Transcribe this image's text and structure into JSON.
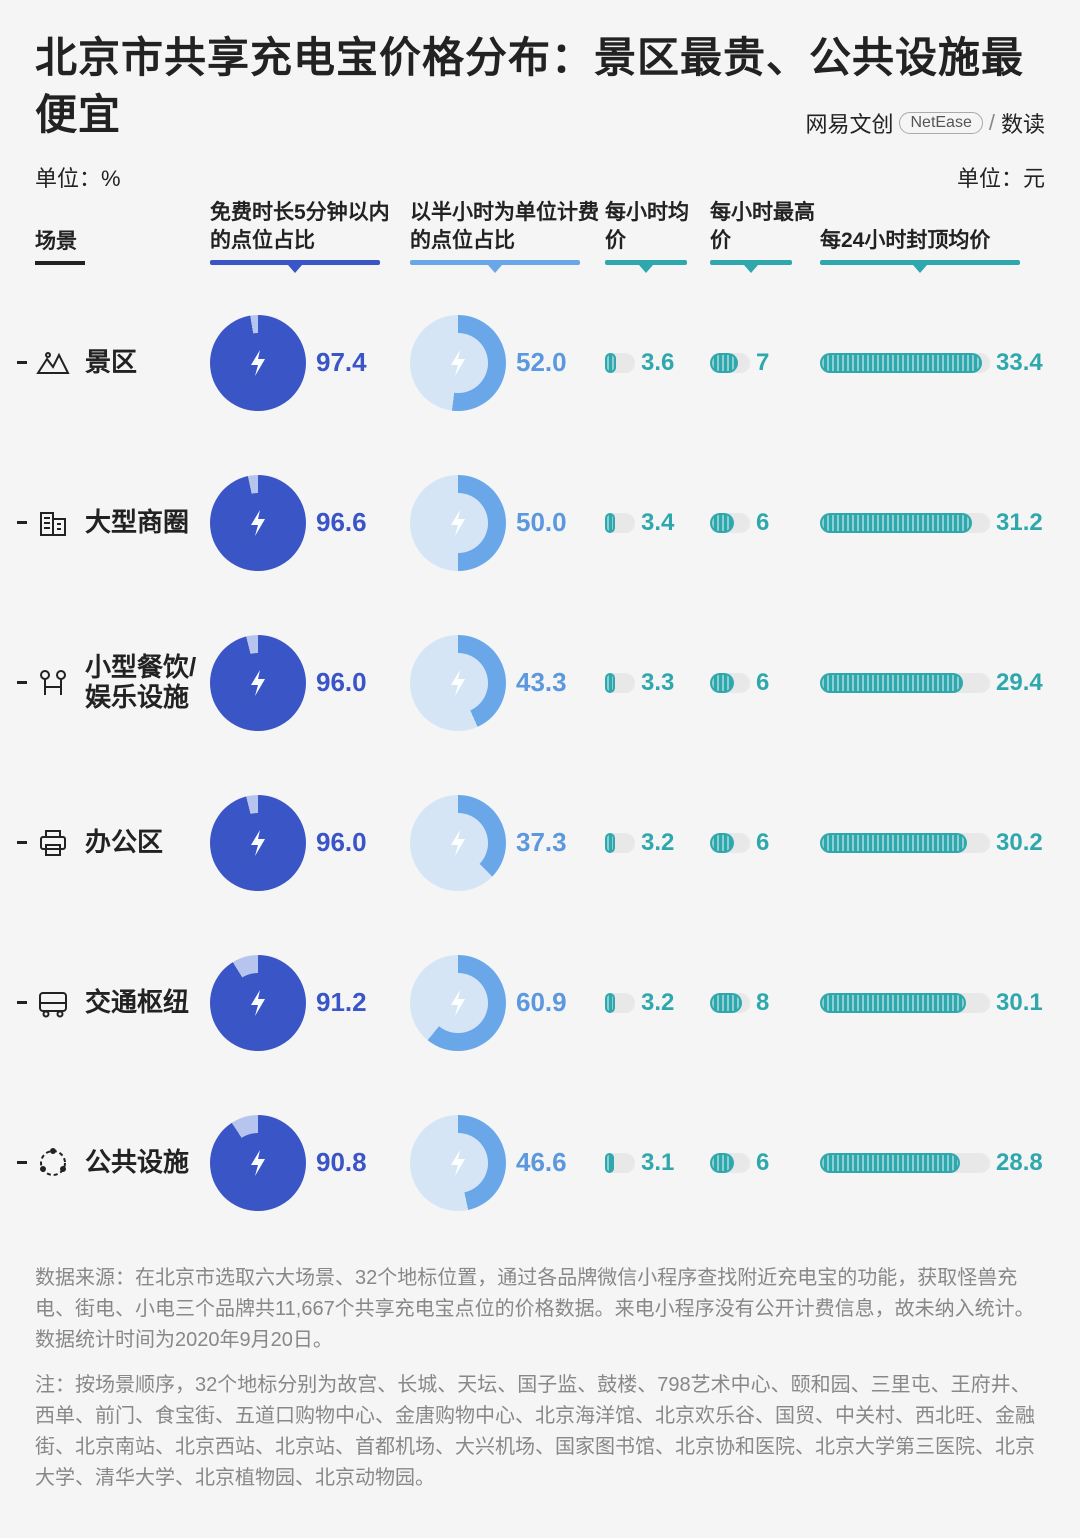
{
  "title": "北京市共享充电宝价格分布：景区最贵、公共设施最便宜",
  "brand": {
    "prefix": "网易文创",
    "badge": "NetEase",
    "suffix": "数读"
  },
  "units": {
    "left": "单位：%",
    "right": "单位：元"
  },
  "columns": {
    "scene": "场景",
    "donut1": "免费时长5分钟以内的点位占比",
    "donut2": "以半小时为单位计费的点位占比",
    "bar1": "每小时均 价",
    "bar2": "每小时最高价",
    "bar3": "每24小时封顶均价"
  },
  "colors": {
    "title": "#1a1a1a",
    "donut1_fill": "#3a55c6",
    "donut1_empty": "#b7c5ee",
    "donut1_inner": "#3a55c6",
    "donut1_text": "#3a55c6",
    "donut2_fill": "#6aa7e8",
    "donut2_empty": "#d6e5f6",
    "donut2_inner": "#d6e5f6",
    "donut2_text": "#5b98dd",
    "bar_fill": "#2fa8ad",
    "bar_text": "#2fa8ad",
    "header_underline_scene": "#222222"
  },
  "scales": {
    "bar1_max": 10,
    "bar2_max": 10,
    "bar3_max": 35,
    "bar1_track": 30,
    "bar2_track": 40,
    "bar3_track": 170
  },
  "rows": [
    {
      "icon": "mountain",
      "label": "景区",
      "d1": 97.4,
      "d2": 52.0,
      "b1": 3.6,
      "b2": 7,
      "b3": 33.4
    },
    {
      "icon": "building",
      "label": "大型商圈",
      "d1": 96.6,
      "d2": 50.0,
      "b1": 3.4,
      "b2": 6,
      "b3": 31.2
    },
    {
      "icon": "fork",
      "label": "小型餐饮/娱乐设施",
      "d1": 96.0,
      "d2": 43.3,
      "b1": 3.3,
      "b2": 6,
      "b3": 29.4
    },
    {
      "icon": "printer",
      "label": "办公区",
      "d1": 96.0,
      "d2": 37.3,
      "b1": 3.2,
      "b2": 6,
      "b3": 30.2
    },
    {
      "icon": "bus",
      "label": "交通枢纽",
      "d1": 91.2,
      "d2": 60.9,
      "b1": 3.2,
      "b2": 8,
      "b3": 30.1
    },
    {
      "icon": "circle",
      "label": "公共设施",
      "d1": 90.8,
      "d2": 46.6,
      "b1": 3.1,
      "b2": 6,
      "b3": 28.8
    }
  ],
  "footnotes": [
    "数据来源：在北京市选取六大场景、32个地标位置，通过各品牌微信小程序查找附近充电宝的功能，获取怪兽充电、街电、小电三个品牌共11,667个共享充电宝点位的价格数据。来电小程序没有公开计费信息，故未纳入统计。数据统计时间为2020年9月20日。",
    "注：按场景顺序，32个地标分别为故宫、长城、天坛、国子监、鼓楼、798艺术中心、颐和园、三里屯、王府井、西单、前门、食宝街、五道口购物中心、金唐购物中心、北京海洋馆、北京欢乐谷、国贸、中关村、西北旺、金融街、北京南站、北京西站、北京站、首都机场、大兴机场、国家图书馆、北京协和医院、北京大学第三医院、北京大学、清华大学、北京植物园、北京动物园。"
  ]
}
